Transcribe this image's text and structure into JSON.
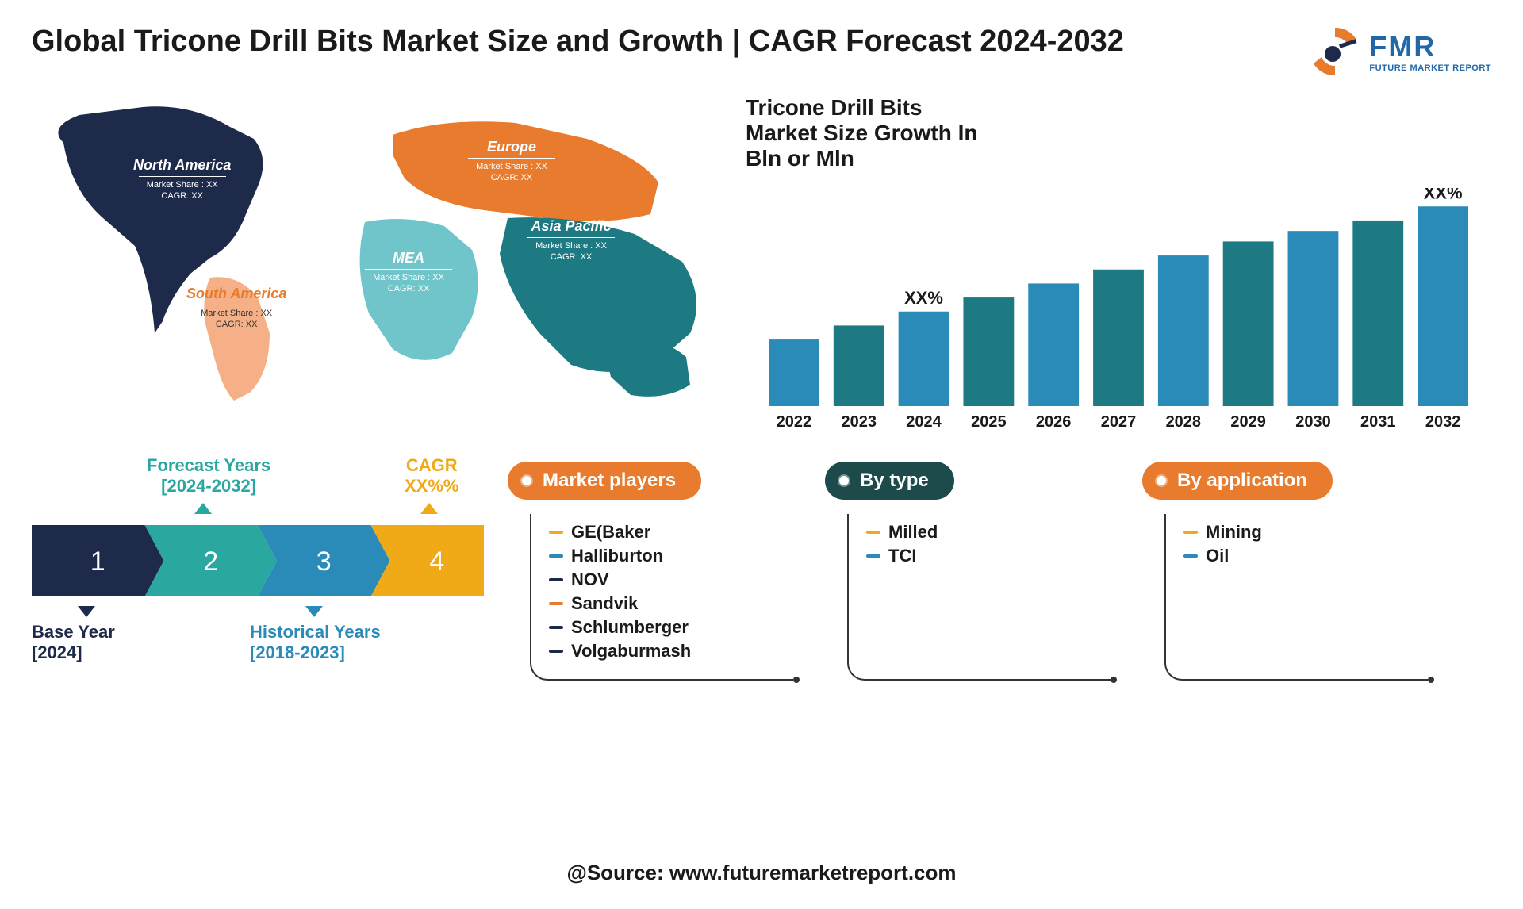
{
  "title": "Global Tricone Drill Bits Market Size and Growth | CAGR Forecast 2024-2032",
  "logo": {
    "brand": "FMR",
    "subtitle": "FUTURE MARKET REPORT",
    "icon_color": "#e87b2e",
    "text_color": "#2168a8"
  },
  "map": {
    "regions": [
      {
        "key": "na",
        "name": "North America",
        "share": "Market Share : XX",
        "cagr": "CAGR: XX",
        "fill": "#1e2a4a"
      },
      {
        "key": "sa",
        "name": "South America",
        "share": "Market Share : XX",
        "cagr": "CAGR: XX",
        "fill": "#f5b087"
      },
      {
        "key": "eu",
        "name": "Europe",
        "share": "Market Share : XX",
        "cagr": "CAGR: XX",
        "fill": "#e87b2e"
      },
      {
        "key": "mea",
        "name": "MEA",
        "share": "Market Share : XX",
        "cagr": "CAGR: XX",
        "fill": "#6fc5c9"
      },
      {
        "key": "ap",
        "name": "Asia Pacific",
        "share": "Market Share : XX",
        "cagr": "CAGR: XX",
        "fill": "#1d7a82"
      }
    ]
  },
  "chart": {
    "title": "Tricone Drill Bits Market Size Growth In Bln or Mln",
    "type": "bar",
    "categories": [
      "2022",
      "2023",
      "2024",
      "2025",
      "2026",
      "2027",
      "2028",
      "2029",
      "2030",
      "2031",
      "2032"
    ],
    "values": [
      38,
      46,
      54,
      62,
      70,
      78,
      86,
      94,
      100,
      106,
      114
    ],
    "ylim": [
      0,
      120
    ],
    "bar_colors": [
      "#2b8bb8",
      "#1d7a82",
      "#2b8bb8",
      "#1d7a82",
      "#2b8bb8",
      "#1d7a82",
      "#2b8bb8",
      "#1d7a82",
      "#2b8bb8",
      "#1d7a82",
      "#2b8bb8"
    ],
    "label_2024": "XX%",
    "label_2032": "XX%",
    "axis_fontsize": 20,
    "axis_fontweight": 700,
    "bar_gap_ratio": 0.22,
    "background_color": "#ffffff"
  },
  "timeline": {
    "steps": [
      {
        "num": "1",
        "fill": "#1e2a4a"
      },
      {
        "num": "2",
        "fill": "#2aa89f"
      },
      {
        "num": "3",
        "fill": "#2b8bb8"
      },
      {
        "num": "4",
        "fill": "#f0a917"
      }
    ],
    "labels": {
      "base": {
        "text": "Base Year",
        "sub": "[2024]",
        "color": "#1e2a4a"
      },
      "forecast": {
        "text": "Forecast Years",
        "sub": "[2024-2032]",
        "color": "#2aa89f"
      },
      "historical": {
        "text": "Historical Years",
        "sub": "[2018-2023]",
        "color": "#2b8bb8"
      },
      "cagr": {
        "text": "CAGR",
        "sub": "XX%%",
        "color": "#f0a917"
      }
    }
  },
  "categories": [
    {
      "title": "Market players",
      "header_bg": "#e87b2e",
      "items": [
        {
          "label": "GE(Baker",
          "tick": "#f0a917"
        },
        {
          "label": "Halliburton",
          "tick": "#2b8bb8"
        },
        {
          "label": "NOV",
          "tick": "#1e2a4a"
        },
        {
          "label": "Sandvik",
          "tick": "#e87b2e"
        },
        {
          "label": "Schlumberger",
          "tick": "#1e2a4a"
        },
        {
          "label": "Volgaburmash",
          "tick": "#1e2a4a"
        }
      ]
    },
    {
      "title": "By type",
      "header_bg": "#1d4a4a",
      "items": [
        {
          "label": "Milled",
          "tick": "#f0a917"
        },
        {
          "label": "TCI",
          "tick": "#2b8bb8"
        }
      ]
    },
    {
      "title": "By application",
      "header_bg": "#e87b2e",
      "items": [
        {
          "label": "Mining",
          "tick": "#f0a917"
        },
        {
          "label": "Oil",
          "tick": "#2b8bb8"
        }
      ]
    }
  ],
  "source": "@Source: www.futuremarketreport.com"
}
